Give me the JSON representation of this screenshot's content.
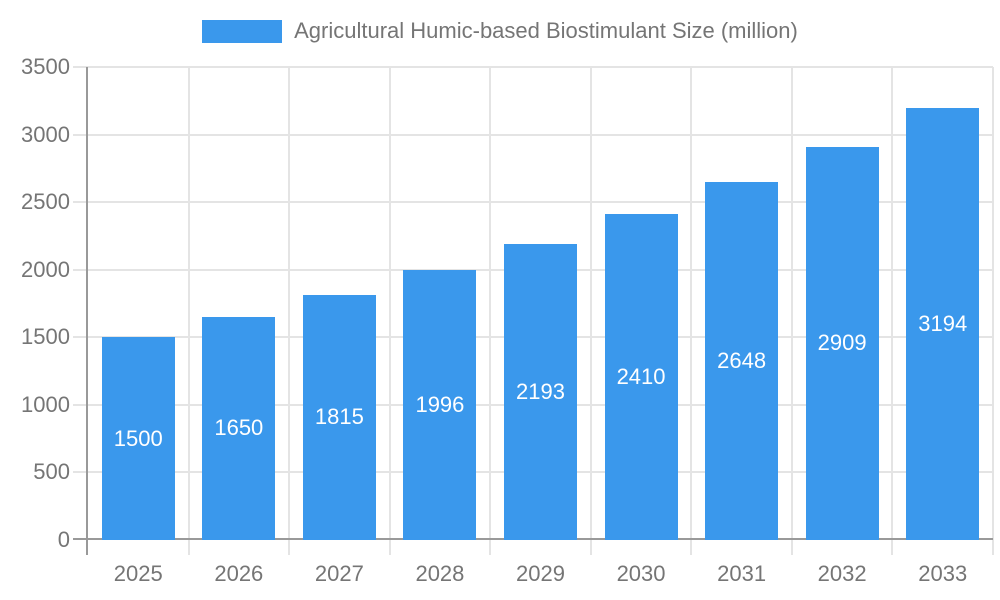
{
  "chart_data": {
    "type": "bar",
    "title": "Agricultural Humic-based Biostimulant Size (million)",
    "legend": [
      "Agricultural Humic-based Biostimulant Size (million)"
    ],
    "legend_position": "top",
    "categories": [
      "2025",
      "2026",
      "2027",
      "2028",
      "2029",
      "2030",
      "2031",
      "2032",
      "2033"
    ],
    "series": [
      {
        "name": "Agricultural Humic-based Biostimulant Size (million)",
        "values": [
          1500,
          1650,
          1815,
          1996,
          2193,
          2410,
          2648,
          2909,
          3194
        ]
      }
    ],
    "value_labels_shown": true,
    "xlabel": "",
    "ylabel": "",
    "ylim": [
      0,
      3500
    ],
    "ytick_step": 500,
    "ytick_labels": [
      "0",
      "500",
      "1000",
      "1500",
      "2000",
      "2500",
      "3000",
      "3500"
    ],
    "grid": true,
    "colors": {
      "bar": "#3a98ec",
      "value_label": "#ffffff",
      "axis_text": "#757575",
      "gridline": "#e4e4e4",
      "axis_line": "#999999",
      "background": "#ffffff"
    }
  }
}
